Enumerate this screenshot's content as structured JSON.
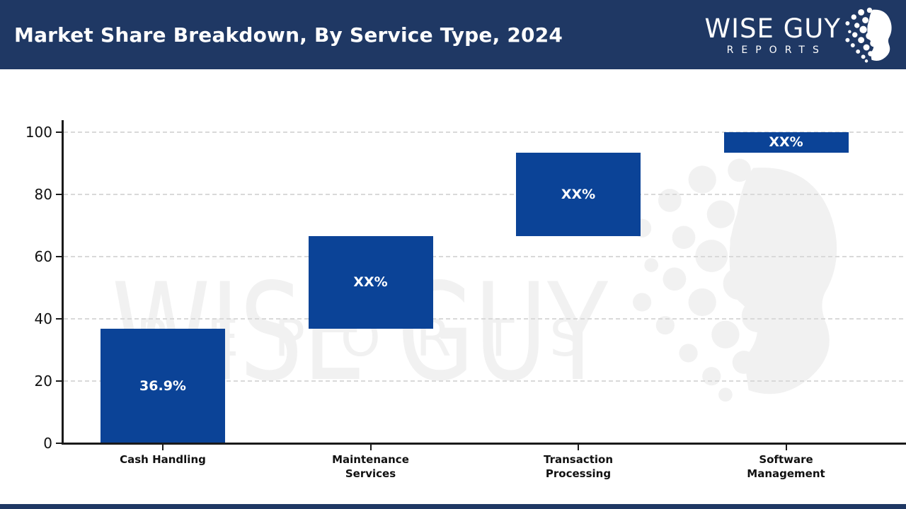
{
  "header": {
    "title": "Market Share Breakdown, By Service Type, 2024",
    "logo_line1": "WISE GUY",
    "logo_line2": "REPORTS"
  },
  "watermark": {
    "line1": "WISE GUY",
    "line2": "REPORTS"
  },
  "colors": {
    "header_bg": "#1f3864",
    "footer_bg": "#1f3864",
    "bar": "#0b4397",
    "bar_label": "#ffffff",
    "gridline": "#d9d9d9",
    "axis": "#1a1a1a",
    "watermark": "#f1f1f1",
    "title_text": "#ffffff"
  },
  "chart_data": {
    "type": "bar",
    "variant": "floating-waterfall",
    "title": "Market Share Breakdown, By Service Type, 2024",
    "categories": [
      "Cash Handling",
      "Maintenance Services",
      "Transaction Processing",
      "Software Management"
    ],
    "category_display_lines": [
      [
        "Cash Handling"
      ],
      [
        "Maintenance",
        "Services"
      ],
      [
        "Transaction",
        "Processing"
      ],
      [
        "Software",
        "Management"
      ]
    ],
    "segments": [
      {
        "category": "Cash Handling",
        "start": 0,
        "end": 36.9,
        "label": "36.9%"
      },
      {
        "category": "Maintenance Services",
        "start": 36.9,
        "end": 66.7,
        "label": "XX%"
      },
      {
        "category": "Transaction Processing",
        "start": 66.7,
        "end": 93.5,
        "label": "XX%"
      },
      {
        "category": "Software Management",
        "start": 93.5,
        "end": 100,
        "label": "XX%"
      }
    ],
    "xlabel": "",
    "ylabel": "",
    "ylim": [
      0,
      100
    ],
    "yticks": [
      0,
      20,
      40,
      60,
      80,
      100
    ],
    "grid": "horizontal-dashed",
    "legend": "none"
  }
}
